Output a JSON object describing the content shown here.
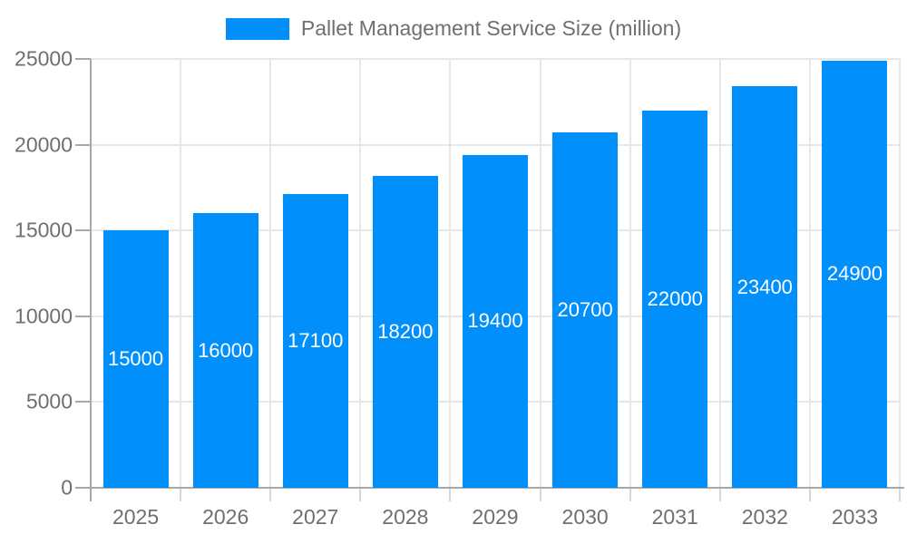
{
  "legend": {
    "label": "Pallet Management Service Size (million)"
  },
  "colors": {
    "bar": "#008FFB",
    "bar_label": "#FFFFFF",
    "grid_h": "#E7E7E7",
    "grid_v": "#E7E7E7",
    "axis": "#A8A8A8",
    "x_tick": "#D7D7D7",
    "text": "#6F6F6F"
  },
  "chart_data": {
    "type": "bar",
    "title": "Pallet Management Service Size (million)",
    "categories": [
      "2025",
      "2026",
      "2027",
      "2028",
      "2029",
      "2030",
      "2031",
      "2032",
      "2033"
    ],
    "values": [
      15000,
      16000,
      17100,
      18200,
      19400,
      20700,
      22000,
      23400,
      24900
    ],
    "xlabel": "",
    "ylabel": "",
    "ylim": [
      0,
      25000
    ],
    "yticks": [
      0,
      5000,
      10000,
      15000,
      20000,
      25000
    ],
    "grid": true,
    "legend_position": "top",
    "bar_labels": "inside-center"
  }
}
